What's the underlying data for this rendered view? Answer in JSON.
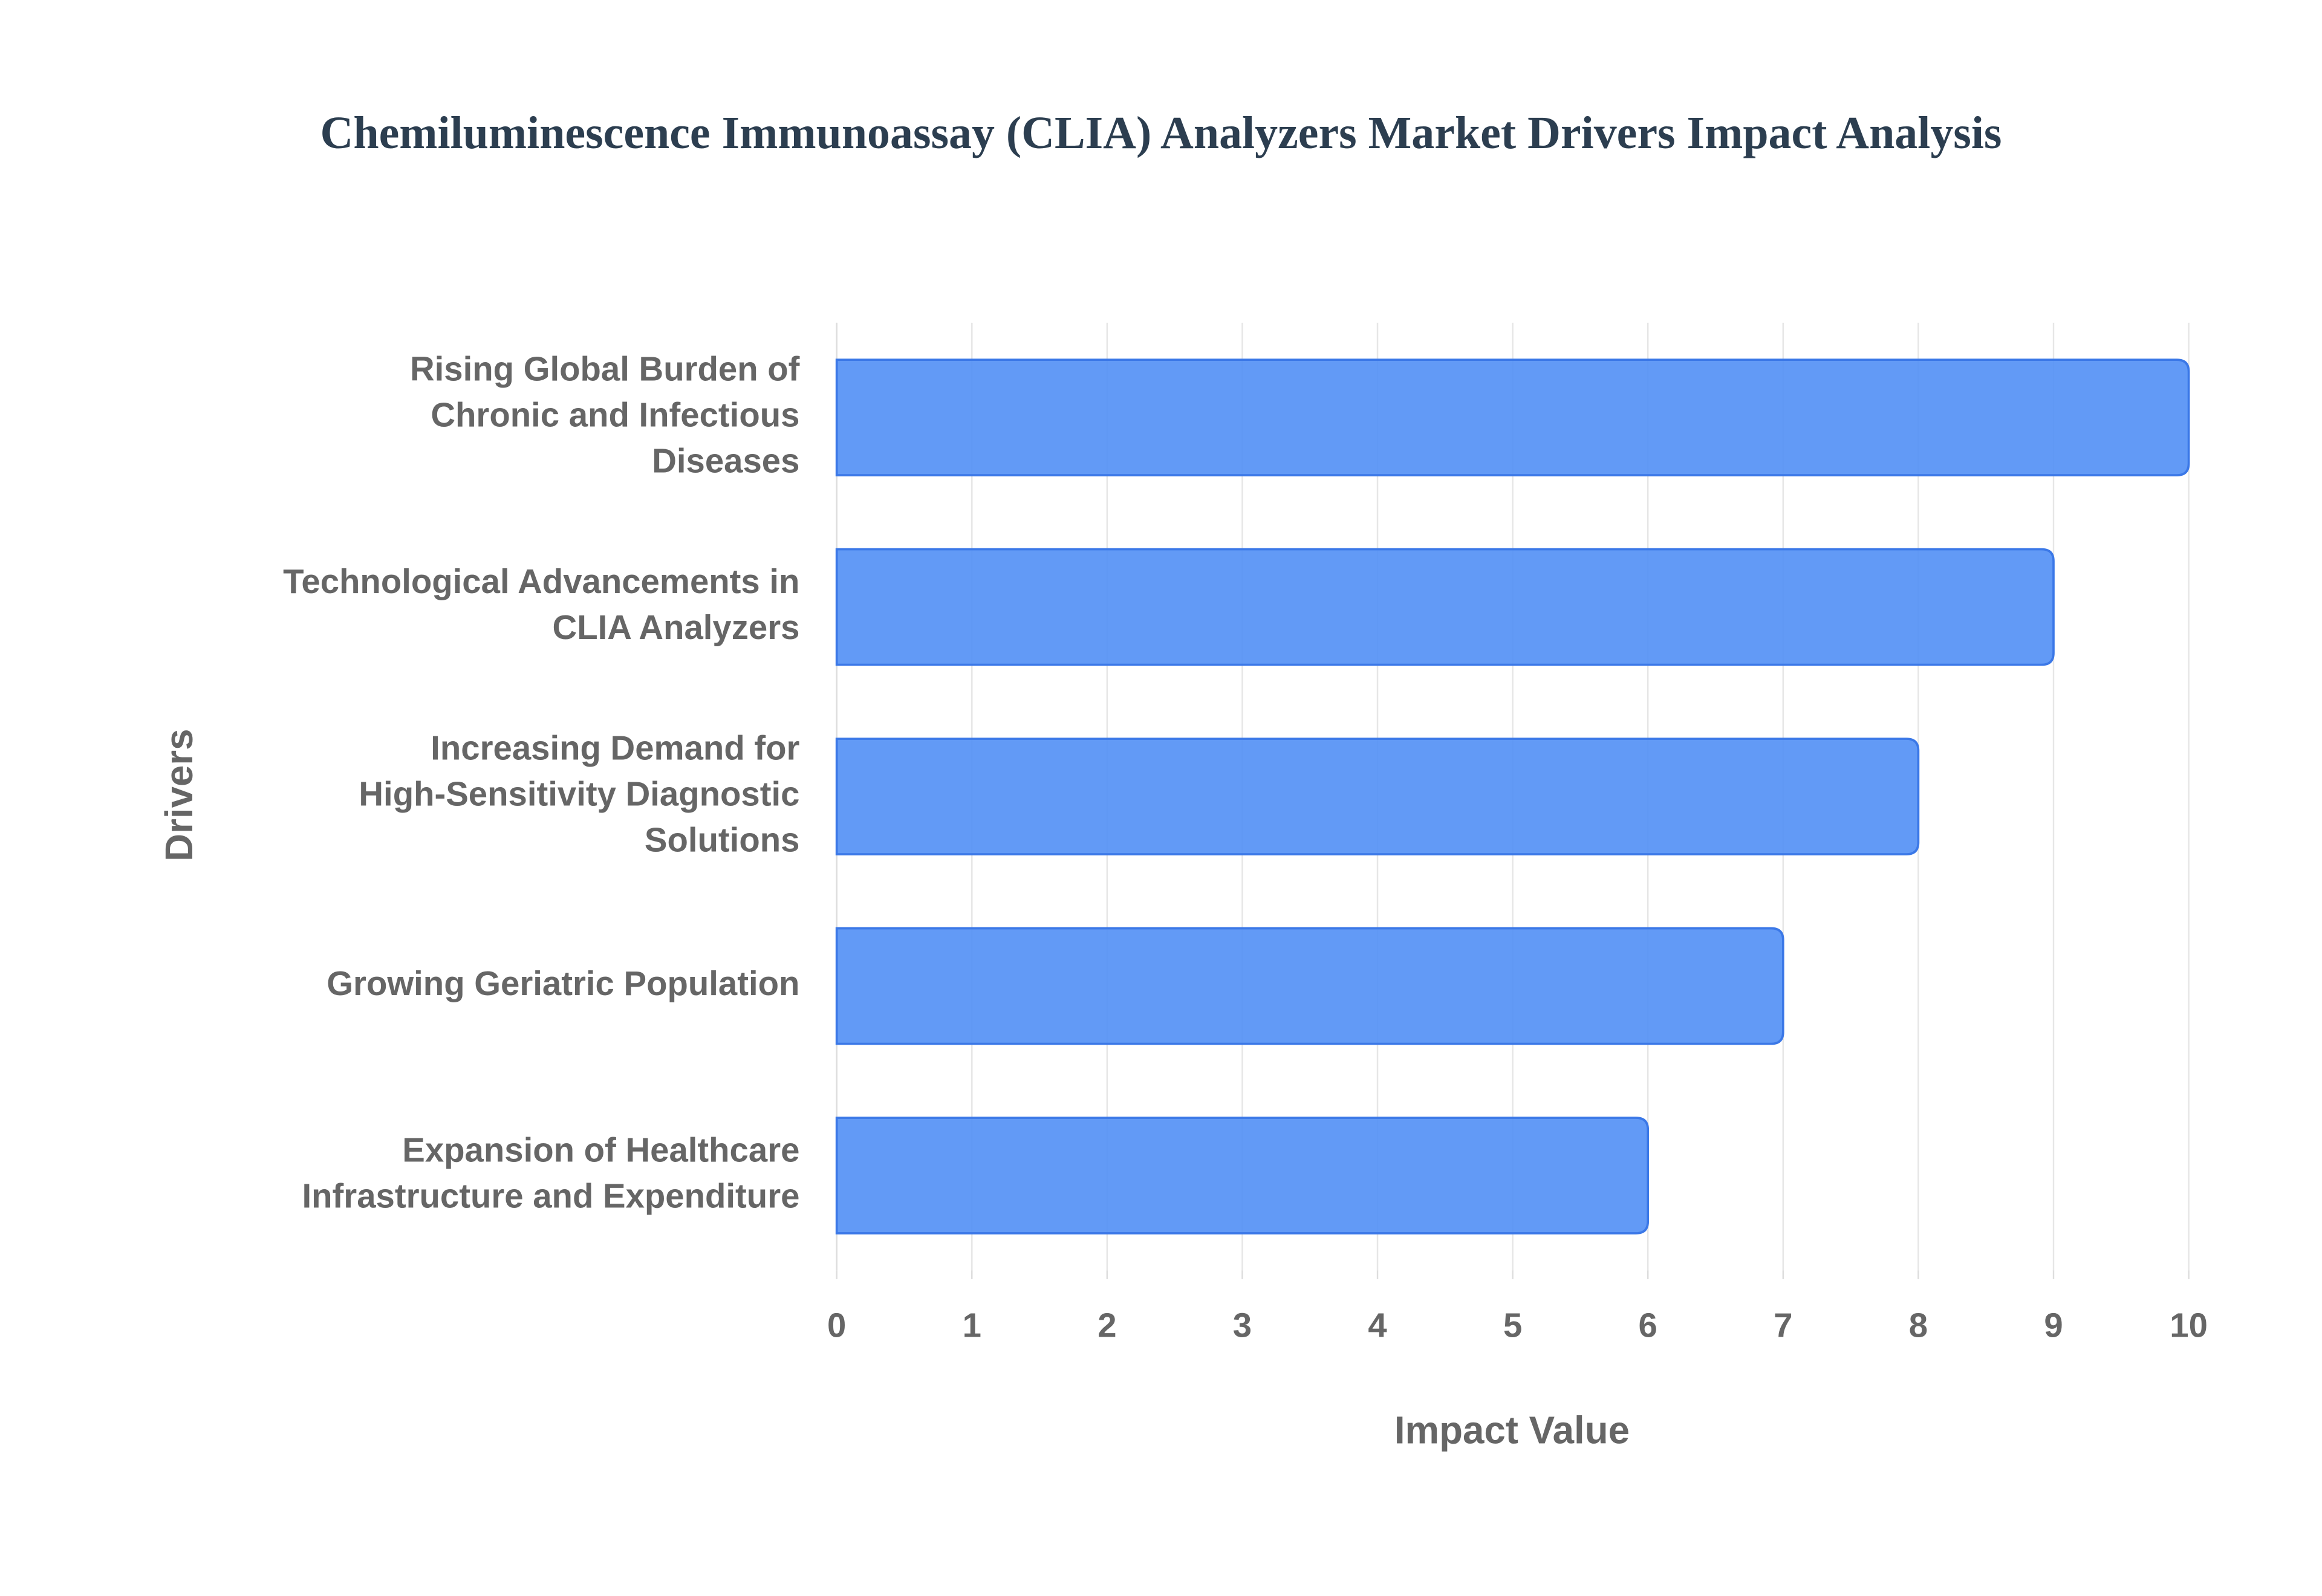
{
  "chart_data": {
    "type": "bar",
    "orientation": "horizontal",
    "title": "Chemiluminescence Immunoassay (CLIA) Analyzers Market Drivers Impact Analysis",
    "x_label": "Impact Value",
    "y_label": "Drivers",
    "categories": [
      "Rising Global Burden of Chronic and Infectious Diseases",
      "Technological Advancements in CLIA Analyzers",
      "Increasing Demand for High-Sensitivity Diagnostic Solutions",
      "Growing Geriatric Population",
      "Expansion of Healthcare Infrastructure and Expenditure"
    ],
    "values": [
      10,
      9,
      8,
      7,
      6
    ],
    "color": "#5591f5",
    "xlim": [
      0,
      10
    ],
    "xticks": [
      0,
      1,
      2,
      3,
      4,
      5,
      6,
      7,
      8,
      9,
      10
    ],
    "grid": true
  }
}
